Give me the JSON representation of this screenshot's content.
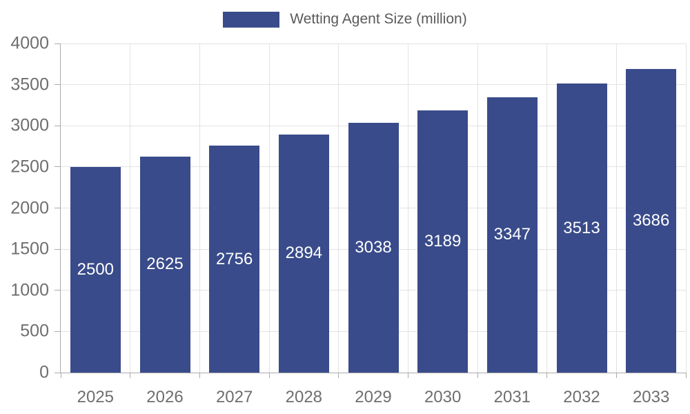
{
  "legend": {
    "label": "Wetting Agent Size (million)"
  },
  "colors": {
    "bar": "#394B8A",
    "bar_label": "#FFFFFF",
    "axis_text": "#6E6E6E",
    "legend_text": "#5A5A5A",
    "grid": "#E2E2E2",
    "axis_line": "#AAAAAA",
    "background": "#FFFFFF"
  },
  "chart_data": {
    "type": "bar",
    "title": "",
    "categories": [
      "2025",
      "2026",
      "2027",
      "2028",
      "2029",
      "2030",
      "2031",
      "2032",
      "2033"
    ],
    "series": [
      {
        "name": "Wetting Agent Size (million)",
        "values": [
          2500,
          2625,
          2756,
          2894,
          3038,
          3189,
          3347,
          3513,
          3686
        ]
      }
    ],
    "xlabel": "",
    "ylabel": "",
    "ylim": [
      0,
      4000
    ],
    "yticks": [
      0,
      500,
      1000,
      1500,
      2000,
      2500,
      3000,
      3500,
      4000
    ],
    "grid": true,
    "legend_position": "top",
    "value_labels": "inside-center"
  }
}
